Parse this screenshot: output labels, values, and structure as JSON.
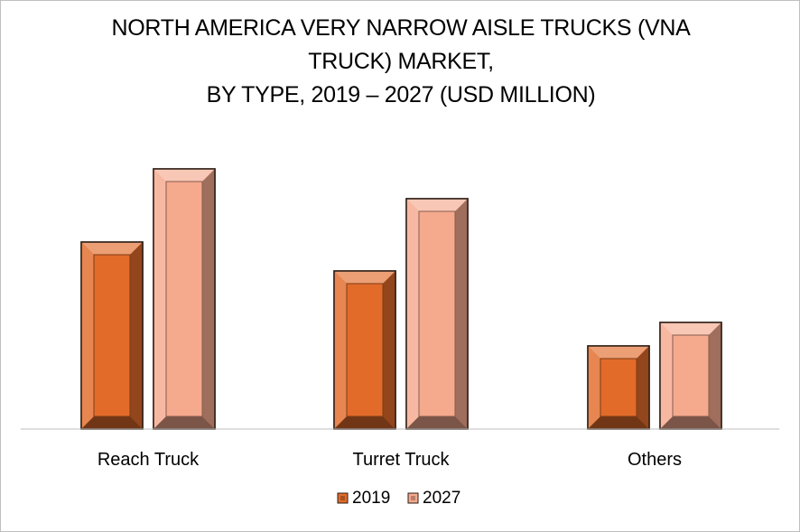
{
  "chart": {
    "title_lines": [
      "NORTH AMERICA VERY NARROW AISLE TRUCKS (VNA",
      "TRUCK) MARKET,",
      "BY TYPE, 2019 – 2027 (USD MILLION)"
    ]
  },
  "chart_data": {
    "type": "bar",
    "title": "NORTH AMERICA VERY NARROW AISLE TRUCKS (VNA TRUCK) MARKET, BY TYPE, 2019 – 2027 (USD MILLION)",
    "categories": [
      "Reach Truck",
      "Turret Truck",
      "Others"
    ],
    "series": [
      {
        "name": "2019",
        "values": [
          207,
          175,
          92
        ],
        "color": "#E26B2A"
      },
      {
        "name": "2027",
        "values": [
          288,
          255,
          118
        ],
        "color": "#F5A98D"
      }
    ],
    "xlabel": "",
    "ylabel": "",
    "ylim": [
      0,
      300
    ],
    "grid": false,
    "y_axis_visible": false,
    "legend_position": "bottom",
    "bar_style": "beveled"
  }
}
